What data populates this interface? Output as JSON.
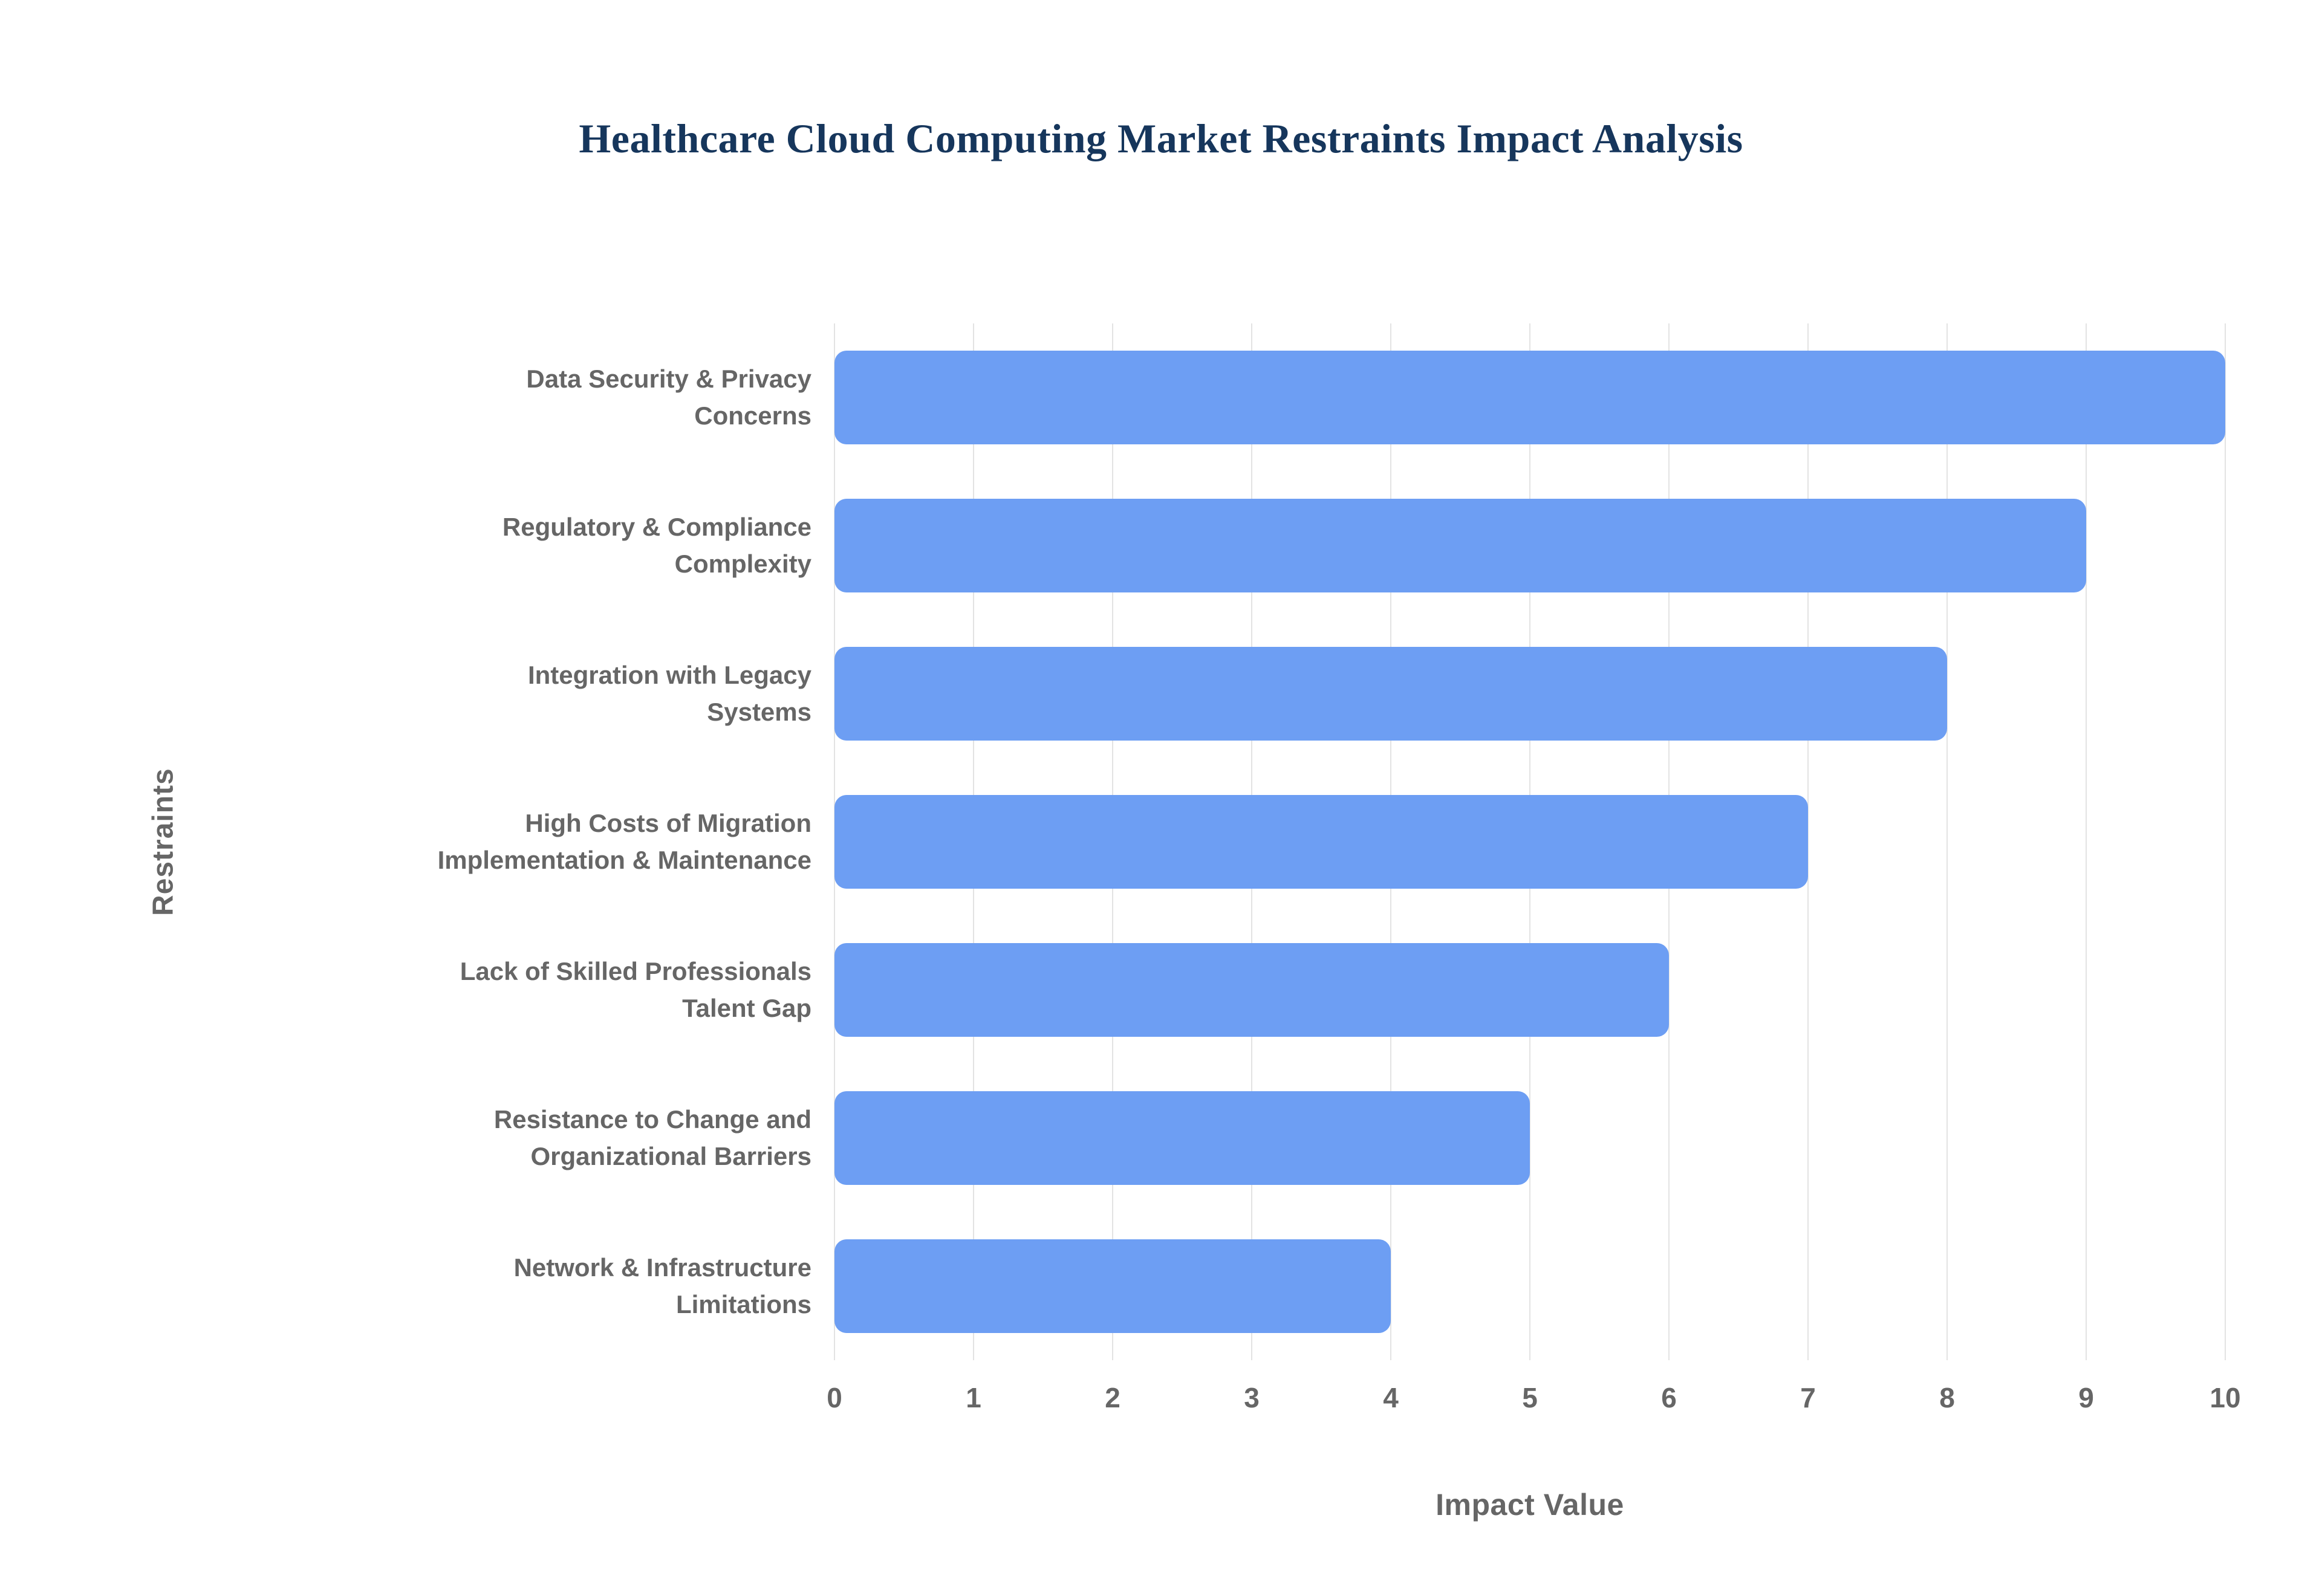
{
  "title": "Healthcare Cloud Computing Market Restraints Impact Analysis",
  "colors": {
    "background": "#ffffff",
    "title": "#16365c",
    "bar": "#6d9ef3",
    "axis_label": "#666666",
    "tick_label": "#666666",
    "grid": "#e3e3e3"
  },
  "chart_data": {
    "type": "bar",
    "orientation": "horizontal",
    "title": "Healthcare Cloud Computing Market Restraints Impact Analysis",
    "xlabel": "Impact Value",
    "ylabel": "Restraints",
    "categories": [
      "Data Security & Privacy\nConcerns",
      "Regulatory & Compliance\nComplexity",
      "Integration with Legacy\nSystems",
      "High Costs of Migration\nImplementation & Maintenance",
      "Lack of Skilled Professionals\nTalent Gap",
      "Resistance to Change and\nOrganizational Barriers",
      "Network & Infrastructure\nLimitations"
    ],
    "values": [
      10,
      9,
      8,
      7,
      6,
      5,
      4
    ],
    "xlim": [
      0,
      10
    ],
    "xticks": [
      0,
      1,
      2,
      3,
      4,
      5,
      6,
      7,
      8,
      9,
      10
    ],
    "grid": true,
    "legend": false
  }
}
